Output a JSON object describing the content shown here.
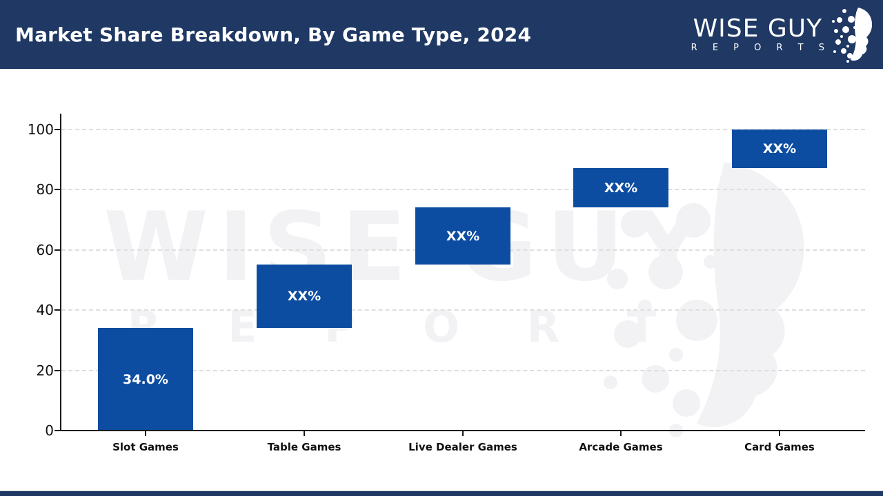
{
  "header": {
    "title": "Market Share Breakdown, By Game Type, 2024",
    "bg_color": "#1f3864",
    "logo": {
      "line1": "WISE GUY",
      "line2": "R E P O R T S"
    }
  },
  "watermark": {
    "line1": "WISE GUY",
    "line2": "R E P O R T S"
  },
  "chart_data": {
    "type": "bar",
    "subtype": "waterfall-floating-bars",
    "title": "Market Share Breakdown, By Game Type, 2024",
    "categories": [
      "Slot Games",
      "Table Games",
      "Live Dealer Games",
      "Arcade Games",
      "Card Games"
    ],
    "series": [
      {
        "name": "Market Share %",
        "segments": [
          {
            "category": "Slot Games",
            "start": 0,
            "end": 34,
            "label": "34.0%"
          },
          {
            "category": "Table Games",
            "start": 34,
            "end": 55,
            "label": "XX%"
          },
          {
            "category": "Live Dealer Games",
            "start": 55,
            "end": 74,
            "label": "XX%"
          },
          {
            "category": "Arcade Games",
            "start": 74,
            "end": 87,
            "label": "XX%"
          },
          {
            "category": "Card Games",
            "start": 87,
            "end": 100,
            "label": "XX%"
          }
        ]
      }
    ],
    "xlabel": "",
    "ylabel": "",
    "ylim": [
      0,
      100
    ],
    "yticks": [
      0,
      20,
      40,
      60,
      80,
      100
    ],
    "grid": "horizontal-dashed",
    "legend": "none",
    "bar_color": "#0c4da2",
    "grid_color": "#dedede",
    "axis_color": "#1a1a1a"
  }
}
